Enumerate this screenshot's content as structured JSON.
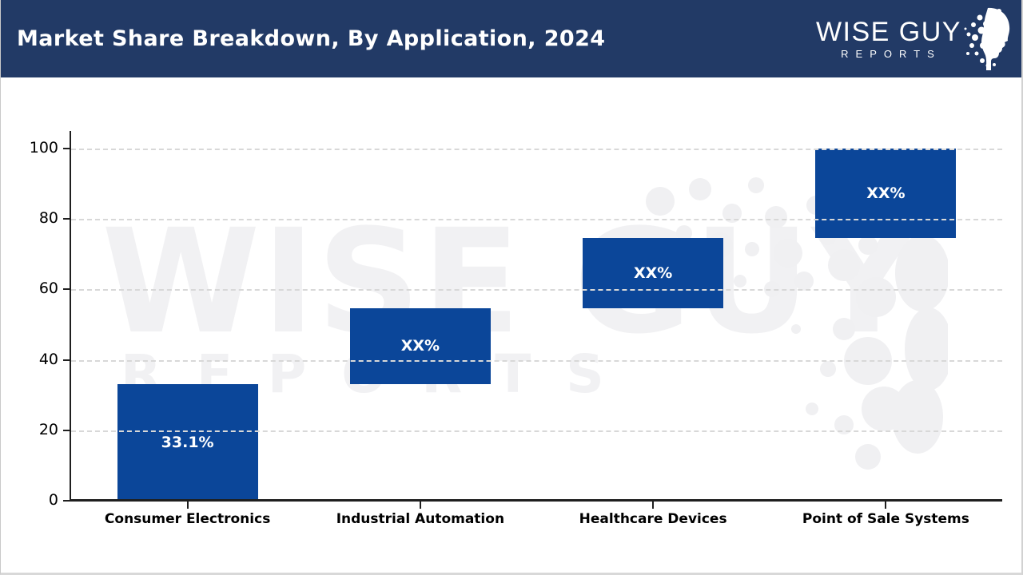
{
  "colors": {
    "header_bg": "#223a66",
    "bar": "#0b4699",
    "bar_label": "#ffffff",
    "grid": "#d8d8d8",
    "axis": "#1f1f1f",
    "watermark": "#f1f1f3"
  },
  "header": {
    "title": "Market Share Breakdown, By Application, 2024",
    "logo_primary": "WISE GUY",
    "logo_secondary": "REPORTS"
  },
  "watermark": {
    "primary": "WISE GUY",
    "secondary": "REPORTS"
  },
  "chart_data": {
    "type": "bar",
    "variant": "waterfall",
    "title": "Market Share Breakdown, By Application, 2024",
    "categories": [
      "Consumer Electronics",
      "Industrial Automation",
      "Healthcare Devices",
      "Point of Sale Systems"
    ],
    "bars": [
      {
        "category": "Consumer Electronics",
        "start": 0,
        "end": 33.1,
        "label": "33.1%"
      },
      {
        "category": "Industrial Automation",
        "start": 33.1,
        "end": 54.7,
        "label": "XX%"
      },
      {
        "category": "Healthcare Devices",
        "start": 54.7,
        "end": 74.5,
        "label": "XX%"
      },
      {
        "category": "Point of Sale Systems",
        "start": 74.5,
        "end": 100,
        "label": "XX%"
      }
    ],
    "ylim": [
      0,
      100
    ],
    "yticks": [
      "0",
      "20",
      "40",
      "60",
      "80",
      "100"
    ],
    "xlabel": "",
    "ylabel": "",
    "grid": "horizontal-dashed",
    "legend": "none"
  }
}
